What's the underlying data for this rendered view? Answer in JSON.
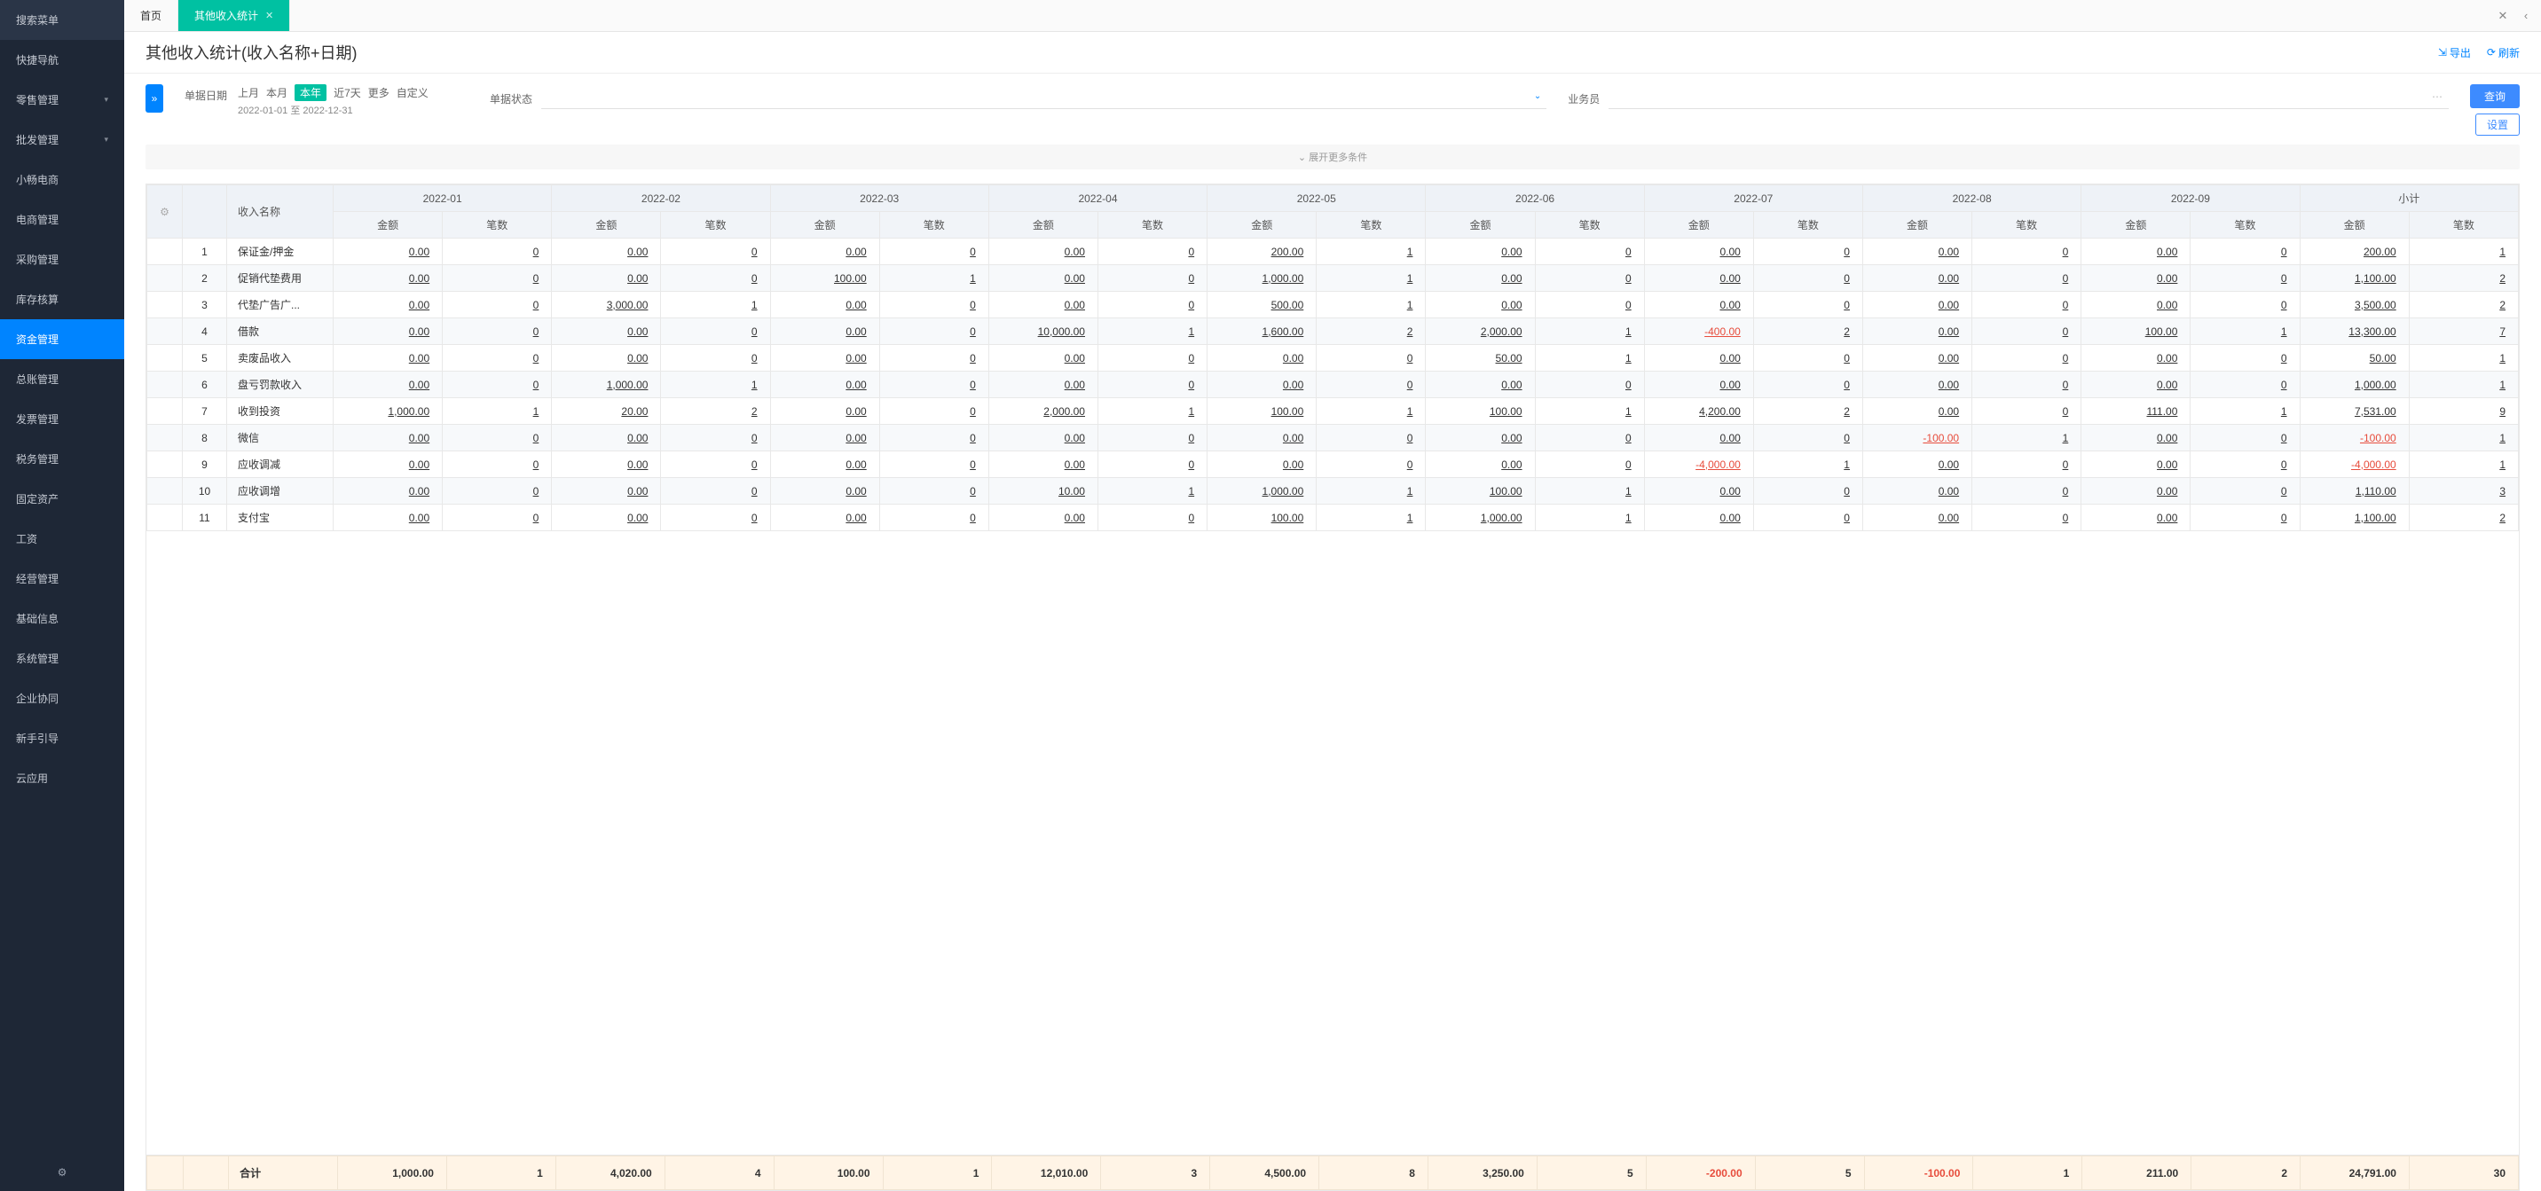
{
  "sidebar": {
    "items": [
      {
        "label": "搜索菜单",
        "expandable": false
      },
      {
        "label": "快捷导航",
        "expandable": false
      },
      {
        "label": "零售管理",
        "expandable": true
      },
      {
        "label": "批发管理",
        "expandable": true
      },
      {
        "label": "小畅电商",
        "expandable": false
      },
      {
        "label": "电商管理",
        "expandable": false
      },
      {
        "label": "采购管理",
        "expandable": false
      },
      {
        "label": "库存核算",
        "expandable": false
      },
      {
        "label": "资金管理",
        "expandable": false,
        "active": true
      },
      {
        "label": "总账管理",
        "expandable": false
      },
      {
        "label": "发票管理",
        "expandable": false
      },
      {
        "label": "税务管理",
        "expandable": false
      },
      {
        "label": "固定资产",
        "expandable": false
      },
      {
        "label": "工资",
        "expandable": false
      },
      {
        "label": "经营管理",
        "expandable": false
      },
      {
        "label": "基础信息",
        "expandable": false
      },
      {
        "label": "系统管理",
        "expandable": false
      },
      {
        "label": "企业协同",
        "expandable": false
      },
      {
        "label": "新手引导",
        "expandable": false
      },
      {
        "label": "云应用",
        "expandable": false
      }
    ]
  },
  "tabs": [
    {
      "label": "首页",
      "active": false,
      "closable": false
    },
    {
      "label": "其他收入统计",
      "active": true,
      "closable": true
    }
  ],
  "page": {
    "title": "其他收入统计(收入名称+日期)",
    "export_label": "导出",
    "refresh_label": "刷新"
  },
  "filters": {
    "date_label": "单据日期",
    "presets": [
      "上月",
      "本月",
      "本年",
      "近7天",
      "更多",
      "自定义"
    ],
    "active_preset": "本年",
    "date_range": "2022-01-01 至 2022-12-31",
    "status_label": "单据状态",
    "clerk_label": "业务员",
    "query_btn": "查询",
    "setting_btn": "设置",
    "expand_label": "展开更多条件"
  },
  "table": {
    "name_header": "收入名称",
    "amount_header": "金额",
    "count_header": "笔数",
    "subtotal_header": "小计",
    "total_label": "合计",
    "periods": [
      "2022-01",
      "2022-02",
      "2022-03",
      "2022-04",
      "2022-05",
      "2022-06",
      "2022-07",
      "2022-08",
      "2022-09"
    ],
    "rows": [
      {
        "name": "保证金/押金",
        "data": [
          [
            "0.00",
            "0"
          ],
          [
            "0.00",
            "0"
          ],
          [
            "0.00",
            "0"
          ],
          [
            "0.00",
            "0"
          ],
          [
            "200.00",
            "1"
          ],
          [
            "0.00",
            "0"
          ],
          [
            "0.00",
            "0"
          ],
          [
            "0.00",
            "0"
          ],
          [
            "0.00",
            "0"
          ]
        ],
        "subtotal": [
          "200.00",
          "1"
        ]
      },
      {
        "name": "促销代垫费用",
        "data": [
          [
            "0.00",
            "0"
          ],
          [
            "0.00",
            "0"
          ],
          [
            "100.00",
            "1"
          ],
          [
            "0.00",
            "0"
          ],
          [
            "1,000.00",
            "1"
          ],
          [
            "0.00",
            "0"
          ],
          [
            "0.00",
            "0"
          ],
          [
            "0.00",
            "0"
          ],
          [
            "0.00",
            "0"
          ]
        ],
        "subtotal": [
          "1,100.00",
          "2"
        ]
      },
      {
        "name": "代垫广告广...",
        "data": [
          [
            "0.00",
            "0"
          ],
          [
            "3,000.00",
            "1"
          ],
          [
            "0.00",
            "0"
          ],
          [
            "0.00",
            "0"
          ],
          [
            "500.00",
            "1"
          ],
          [
            "0.00",
            "0"
          ],
          [
            "0.00",
            "0"
          ],
          [
            "0.00",
            "0"
          ],
          [
            "0.00",
            "0"
          ]
        ],
        "subtotal": [
          "3,500.00",
          "2"
        ]
      },
      {
        "name": "借款",
        "data": [
          [
            "0.00",
            "0"
          ],
          [
            "0.00",
            "0"
          ],
          [
            "0.00",
            "0"
          ],
          [
            "10,000.00",
            "1"
          ],
          [
            "1,600.00",
            "2"
          ],
          [
            "2,000.00",
            "1"
          ],
          [
            "-400.00",
            "2"
          ],
          [
            "0.00",
            "0"
          ],
          [
            "100.00",
            "1"
          ]
        ],
        "subtotal": [
          "13,300.00",
          "7"
        ]
      },
      {
        "name": "卖废品收入",
        "data": [
          [
            "0.00",
            "0"
          ],
          [
            "0.00",
            "0"
          ],
          [
            "0.00",
            "0"
          ],
          [
            "0.00",
            "0"
          ],
          [
            "0.00",
            "0"
          ],
          [
            "50.00",
            "1"
          ],
          [
            "0.00",
            "0"
          ],
          [
            "0.00",
            "0"
          ],
          [
            "0.00",
            "0"
          ]
        ],
        "subtotal": [
          "50.00",
          "1"
        ]
      },
      {
        "name": "盘亏罚款收入",
        "data": [
          [
            "0.00",
            "0"
          ],
          [
            "1,000.00",
            "1"
          ],
          [
            "0.00",
            "0"
          ],
          [
            "0.00",
            "0"
          ],
          [
            "0.00",
            "0"
          ],
          [
            "0.00",
            "0"
          ],
          [
            "0.00",
            "0"
          ],
          [
            "0.00",
            "0"
          ],
          [
            "0.00",
            "0"
          ]
        ],
        "subtotal": [
          "1,000.00",
          "1"
        ]
      },
      {
        "name": "收到投资",
        "data": [
          [
            "1,000.00",
            "1"
          ],
          [
            "20.00",
            "2"
          ],
          [
            "0.00",
            "0"
          ],
          [
            "2,000.00",
            "1"
          ],
          [
            "100.00",
            "1"
          ],
          [
            "100.00",
            "1"
          ],
          [
            "4,200.00",
            "2"
          ],
          [
            "0.00",
            "0"
          ],
          [
            "111.00",
            "1"
          ]
        ],
        "subtotal": [
          "7,531.00",
          "9"
        ]
      },
      {
        "name": "微信",
        "data": [
          [
            "0.00",
            "0"
          ],
          [
            "0.00",
            "0"
          ],
          [
            "0.00",
            "0"
          ],
          [
            "0.00",
            "0"
          ],
          [
            "0.00",
            "0"
          ],
          [
            "0.00",
            "0"
          ],
          [
            "0.00",
            "0"
          ],
          [
            "-100.00",
            "1"
          ],
          [
            "0.00",
            "0"
          ]
        ],
        "subtotal": [
          "-100.00",
          "1"
        ]
      },
      {
        "name": "应收调减",
        "data": [
          [
            "0.00",
            "0"
          ],
          [
            "0.00",
            "0"
          ],
          [
            "0.00",
            "0"
          ],
          [
            "0.00",
            "0"
          ],
          [
            "0.00",
            "0"
          ],
          [
            "0.00",
            "0"
          ],
          [
            "-4,000.00",
            "1"
          ],
          [
            "0.00",
            "0"
          ],
          [
            "0.00",
            "0"
          ]
        ],
        "subtotal": [
          "-4,000.00",
          "1"
        ]
      },
      {
        "name": "应收调增",
        "data": [
          [
            "0.00",
            "0"
          ],
          [
            "0.00",
            "0"
          ],
          [
            "0.00",
            "0"
          ],
          [
            "10.00",
            "1"
          ],
          [
            "1,000.00",
            "1"
          ],
          [
            "100.00",
            "1"
          ],
          [
            "0.00",
            "0"
          ],
          [
            "0.00",
            "0"
          ],
          [
            "0.00",
            "0"
          ]
        ],
        "subtotal": [
          "1,110.00",
          "3"
        ]
      },
      {
        "name": "支付宝",
        "data": [
          [
            "0.00",
            "0"
          ],
          [
            "0.00",
            "0"
          ],
          [
            "0.00",
            "0"
          ],
          [
            "0.00",
            "0"
          ],
          [
            "100.00",
            "1"
          ],
          [
            "1,000.00",
            "1"
          ],
          [
            "0.00",
            "0"
          ],
          [
            "0.00",
            "0"
          ],
          [
            "0.00",
            "0"
          ]
        ],
        "subtotal": [
          "1,100.00",
          "2"
        ]
      }
    ],
    "totals": {
      "data": [
        [
          "1,000.00",
          "1"
        ],
        [
          "4,020.00",
          "4"
        ],
        [
          "100.00",
          "1"
        ],
        [
          "12,010.00",
          "3"
        ],
        [
          "4,500.00",
          "8"
        ],
        [
          "3,250.00",
          "5"
        ],
        [
          "-200.00",
          "5"
        ],
        [
          "-100.00",
          "1"
        ],
        [
          "211.00",
          "2"
        ]
      ],
      "subtotal": [
        "24,791.00",
        "30"
      ]
    }
  }
}
